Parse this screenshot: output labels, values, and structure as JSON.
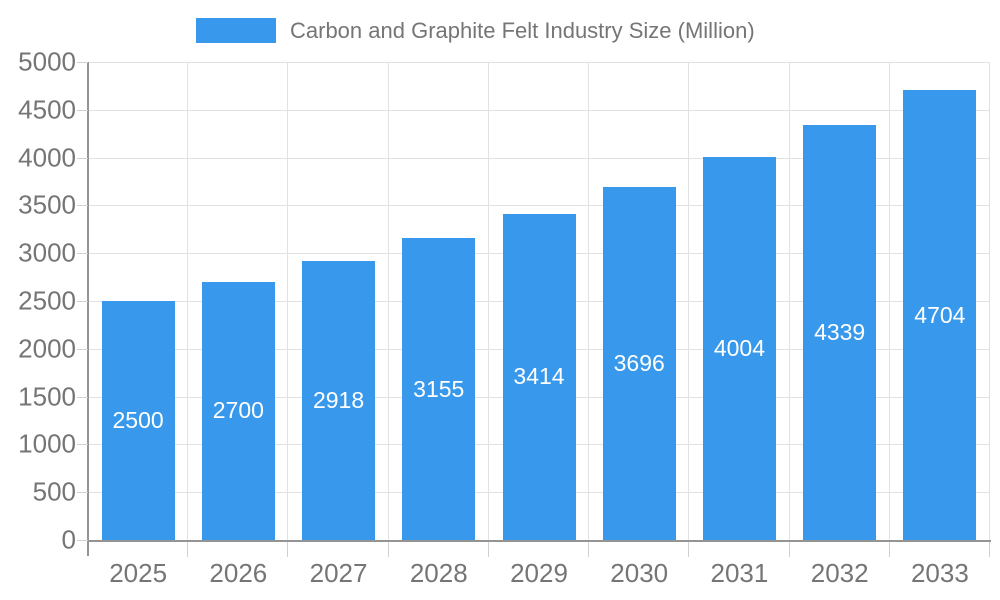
{
  "chart_data": {
    "type": "bar",
    "title": "Carbon and Graphite Felt Industry Size (Million)",
    "categories": [
      "2025",
      "2026",
      "2027",
      "2028",
      "2029",
      "2030",
      "2031",
      "2032",
      "2033"
    ],
    "values": [
      2500,
      2700,
      2918,
      3155,
      3414,
      3696,
      4004,
      4339,
      4704
    ],
    "xlabel": "",
    "ylabel": "",
    "ylim": [
      0,
      5000
    ],
    "ytick_step": 500,
    "grid": true,
    "legend_position": "top",
    "value_labels": "inside-center",
    "colors": {
      "bar": "#3899ec",
      "grid": "#e2e2e2",
      "axis": "#949494",
      "tick": "#d0d0d0",
      "text": "#757575",
      "value_label": "#ffffff"
    }
  }
}
